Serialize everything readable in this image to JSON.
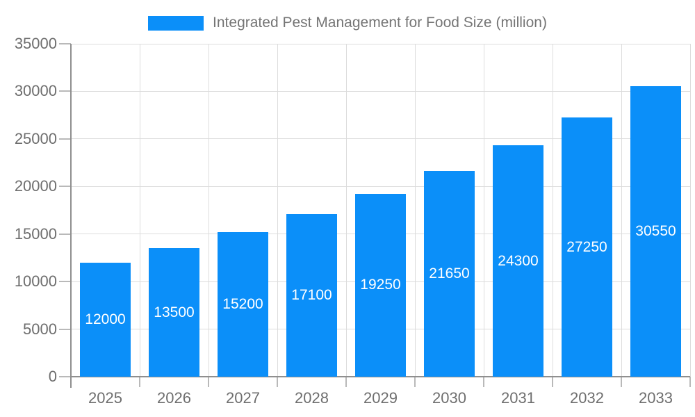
{
  "legend": {
    "label": "Integrated Pest Management for Food Size (million)",
    "swatch_color": "#0b8ff9"
  },
  "chart_data": {
    "type": "bar",
    "title": "Integrated Pest Management for Food Size (million)",
    "categories": [
      "2025",
      "2026",
      "2027",
      "2028",
      "2029",
      "2030",
      "2031",
      "2032",
      "2033"
    ],
    "values": [
      12000,
      13500,
      15200,
      17100,
      19250,
      21650,
      24300,
      27250,
      30550
    ],
    "xlabel": "",
    "ylabel": "",
    "ylim": [
      0,
      35000
    ],
    "ytick_step": 5000,
    "ytick_labels": [
      "0",
      "5000",
      "10000",
      "15000",
      "20000",
      "25000",
      "30000",
      "35000"
    ],
    "grid": true,
    "legend_position": "top-center",
    "bar_color": "#0b8ff9",
    "bar_label_color": "#ffffff",
    "axis_text_color": "#6e6e6e",
    "gridline_color": "#dcdcdc",
    "axis_line_color": "#8f8f8f"
  }
}
